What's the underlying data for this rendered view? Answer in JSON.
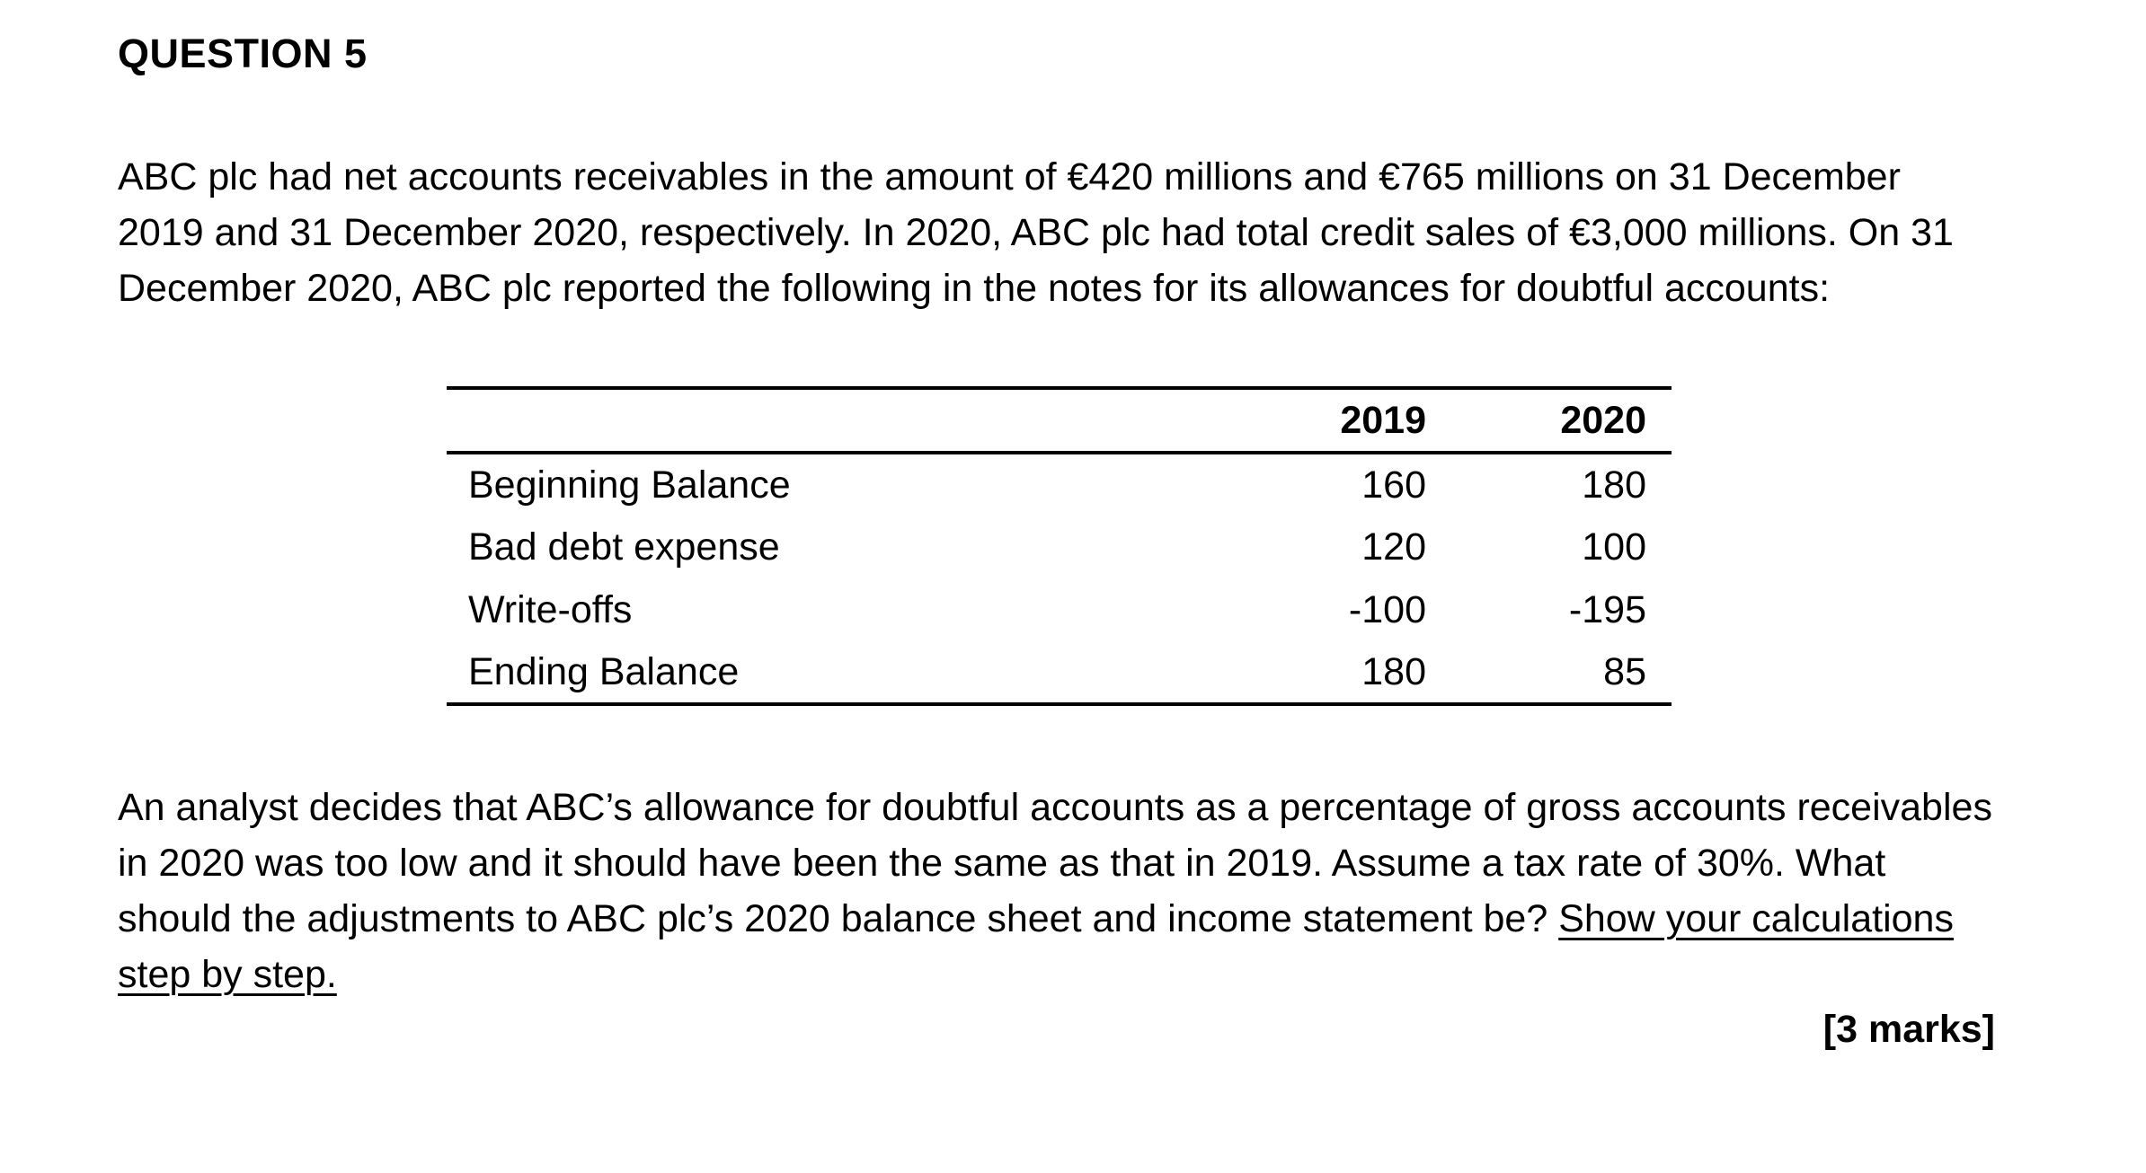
{
  "title": "QUESTION 5",
  "intro": {
    "text": "ABC plc had net accounts receivables in the amount of €420 millions and €765 millions on 31 December 2019 and 31 December 2020, respectively. In 2020, ABC plc had total credit sales of €3,000 millions. On 31 December 2020, ABC plc reported the following in the notes for its allowances for doubtful accounts:"
  },
  "table": {
    "columns": [
      "",
      "2019",
      "2020"
    ],
    "rows": [
      {
        "label": "Beginning Balance",
        "y2019": "160",
        "y2020": "180"
      },
      {
        "label": "Bad debt expense",
        "y2019": "120",
        "y2020": "100"
      },
      {
        "label": "Write-offs",
        "y2019": "-100",
        "y2020": "-195"
      },
      {
        "label": "Ending Balance",
        "y2019": "180",
        "y2020": "85"
      }
    ]
  },
  "question": {
    "text": "An analyst decides that ABC’s allowance for doubtful accounts as a percentage of gross accounts receivables in 2020 was too low and it should have been the same as that in 2019. Assume a tax rate of 30%. What should the adjustments to ABC plc’s 2020 balance sheet and income statement be? ",
    "underlined": "Show your calculations step by step."
  },
  "marks": "[3 marks]"
}
